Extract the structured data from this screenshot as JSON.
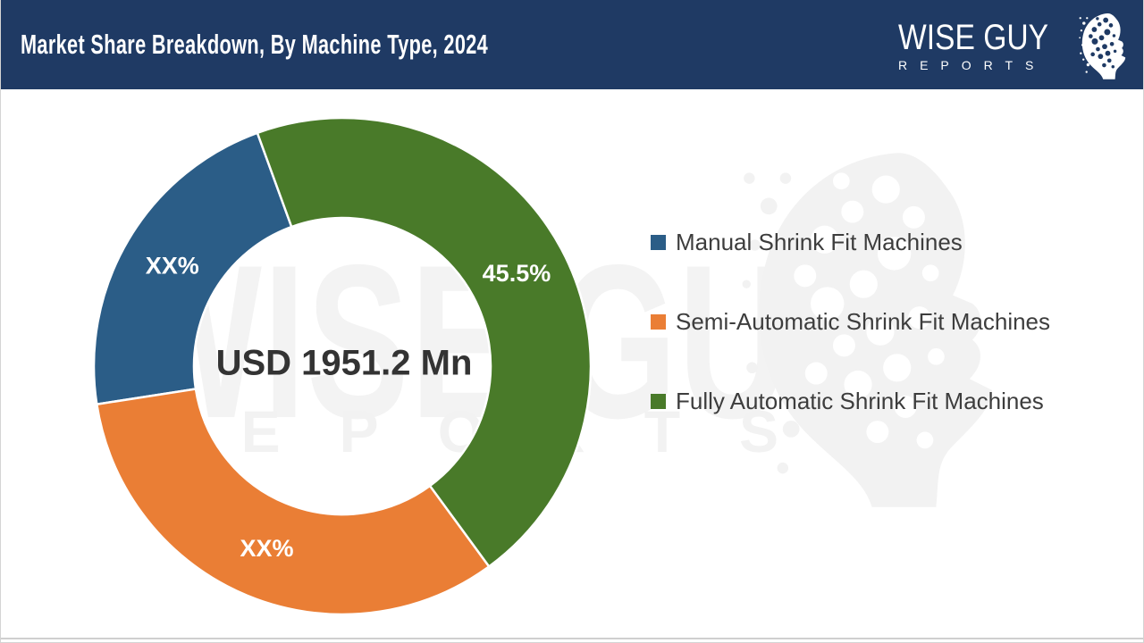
{
  "header": {
    "title": "Market Share Breakdown, By Machine Type, 2024",
    "logo": {
      "line1": "WISE GUY",
      "line2": "REPORTS"
    }
  },
  "chart_data": {
    "type": "pie",
    "subtype": "donut",
    "title": "Market Share Breakdown, By Machine Type, 2024",
    "center_label": "USD 1951.2 Mn",
    "start_angle_deg": -20,
    "direction": "counterclockwise",
    "legend_position": "right",
    "slices": [
      {
        "label": "Manual Shrink Fit Machines",
        "display_pct": "XX%",
        "value_pct": 21.9,
        "color": "#2b5d87"
      },
      {
        "label": "Semi-Automatic Shrink Fit Machines",
        "display_pct": "XX%",
        "value_pct": 32.6,
        "color": "#ea7e35"
      },
      {
        "label": "Fully Automatic Shrink Fit Machines",
        "display_pct": "45.5%",
        "value_pct": 45.5,
        "color": "#497a29"
      }
    ]
  },
  "watermark": {
    "big_text": "WISE GUY",
    "row_text": "REPORTS"
  }
}
